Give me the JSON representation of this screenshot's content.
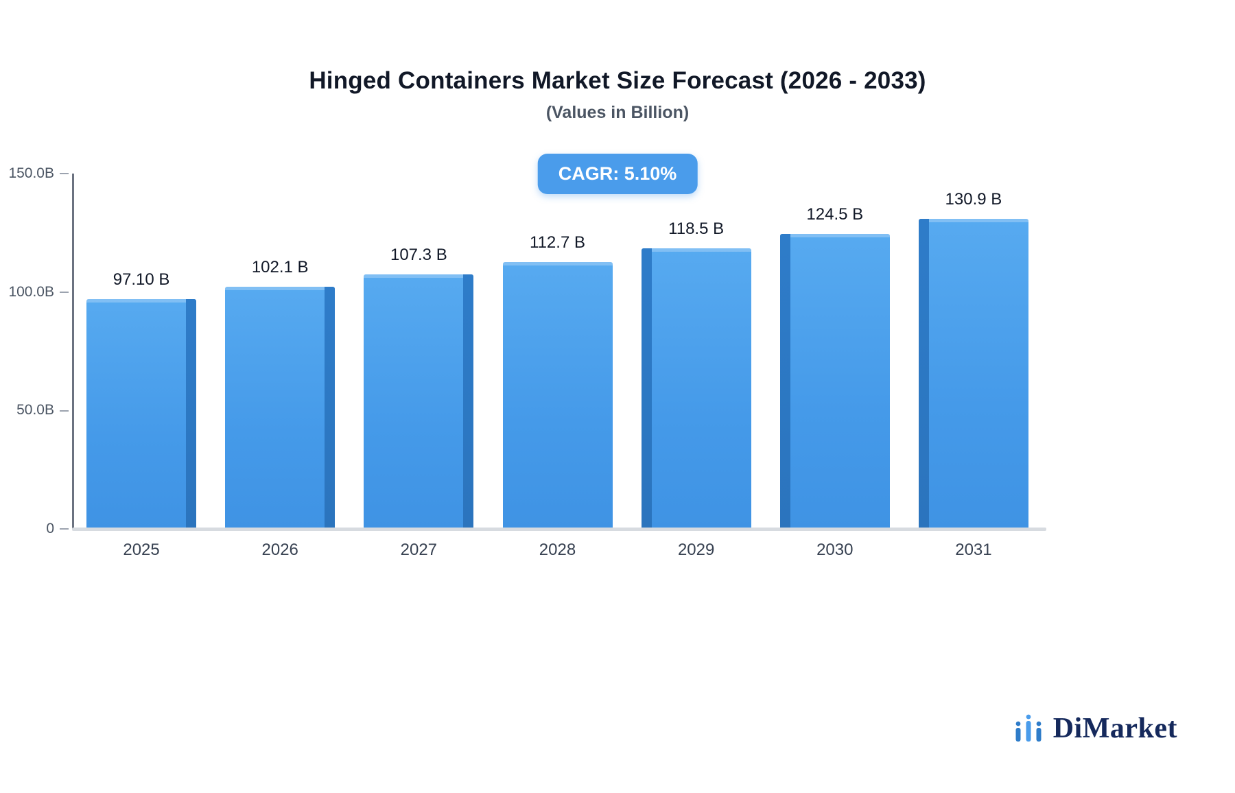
{
  "header": {
    "title": "Hinged Containers Market Size Forecast (2026 - 2033)",
    "subtitle": "(Values in Billion)",
    "cagr_badge": "CAGR: 5.10%"
  },
  "chart_data": {
    "type": "bar",
    "title": "Hinged Containers Market Size Forecast (2026 - 2033)",
    "subtitle": "(Values in Billion)",
    "categories": [
      "2025",
      "2026",
      "2027",
      "2028",
      "2029",
      "2030",
      "2031"
    ],
    "values": [
      97.1,
      102.1,
      107.3,
      112.7,
      118.5,
      124.5,
      130.9
    ],
    "value_labels": [
      "97.10 B",
      "102.1 B",
      "107.3 B",
      "112.7 B",
      "118.5 B",
      "124.5 B",
      "130.9 B"
    ],
    "xlabel": "",
    "ylabel": "",
    "ylim": [
      0,
      150
    ],
    "yticks": [
      {
        "value": 0,
        "label": "0"
      },
      {
        "value": 50,
        "label": "50.0B"
      },
      {
        "value": 100,
        "label": "100.0B"
      },
      {
        "value": 150,
        "label": "150.0B"
      }
    ],
    "grid": false,
    "legend": "none",
    "colors": {
      "bar_face": "#459ae9",
      "bar_side": "#2e7cc9",
      "badge_bg": "#4a9ceb",
      "axis": "#6b7280",
      "baseline": "#d7dbe0",
      "text_dark": "#111827"
    }
  },
  "logo": {
    "icon": "bar-chart-icon",
    "text": "DiMarket"
  }
}
